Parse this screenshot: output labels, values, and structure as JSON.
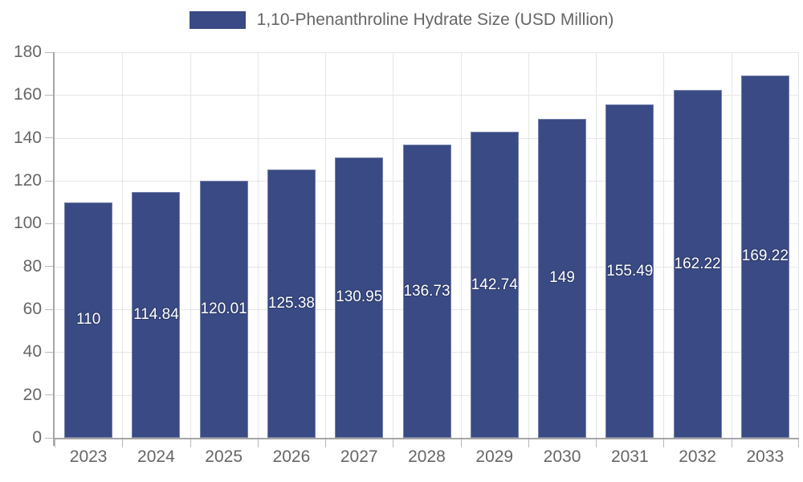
{
  "chart_data": {
    "type": "bar",
    "title": "1,10-Phenanthroline Hydrate Size (USD Million)",
    "xlabel": "",
    "ylabel": "",
    "categories": [
      "2023",
      "2024",
      "2025",
      "2026",
      "2027",
      "2028",
      "2029",
      "2030",
      "2031",
      "2032",
      "2033"
    ],
    "values": [
      110,
      114.84,
      120.01,
      125.38,
      130.95,
      136.73,
      142.74,
      149,
      155.49,
      162.22,
      169.22
    ],
    "value_labels": [
      "110",
      "114.84",
      "120.01",
      "125.38",
      "130.95",
      "136.73",
      "142.74",
      "149",
      "155.49",
      "162.22",
      "169.22"
    ],
    "ylim": [
      0,
      180
    ],
    "ytick_step": 20,
    "ytick_labels": [
      "0",
      "20",
      "40",
      "60",
      "80",
      "100",
      "120",
      "140",
      "160",
      "180"
    ],
    "grid": true,
    "legend_position": "top-center",
    "colors": {
      "bar": "#3A4A84",
      "value_label_text": "#FFFFFF",
      "value_label_outline": "#2E3C6E",
      "axis_text": "#666666",
      "gridline": "#E6E6E6",
      "axis_line": "#A6A6A6",
      "tick": "#B8B8B8",
      "background": "#FFFFFF"
    }
  }
}
